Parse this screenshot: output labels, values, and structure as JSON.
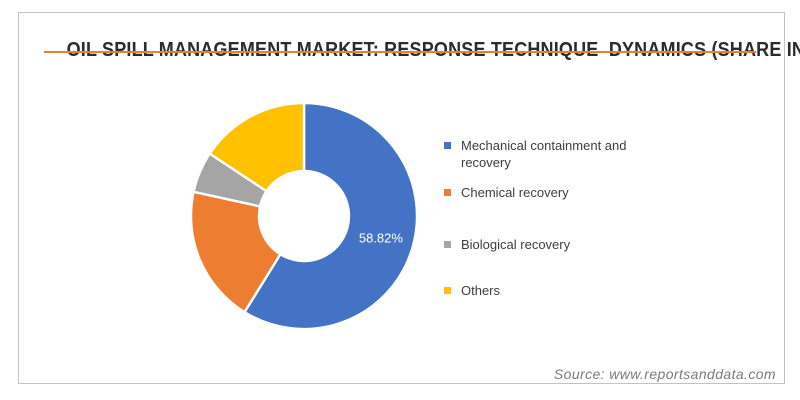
{
  "footer": {
    "source": "Source: www.reportsanddata.com"
  },
  "colors": {
    "accent_orange": "#e0823e",
    "frame_border": "#c3c3c3",
    "title_text": "#2b2b2b",
    "legend_text": "#3d3d3d",
    "source_text": "#7b7b7b",
    "slice_label_text": "#ffffff"
  },
  "chart_data": {
    "type": "pie",
    "subtype": "donut",
    "title": "OIL SPILL MANAGEMENT MARKET: RESPONSE TECHNIQUE  DYNAMICS (SHARE IN PERCENTAGE)",
    "legend_position": "right",
    "start_angle_deg": 0,
    "direction": "clockwise",
    "donut_hole_ratio": 0.4,
    "series": [
      {
        "name": "Mechanical containment and recovery",
        "value": 58.82,
        "color": "#4472C4",
        "data_label": "58.82%"
      },
      {
        "name": "Chemical recovery",
        "value": 19.61,
        "color": "#ED7D31",
        "data_label": ""
      },
      {
        "name": "Biological recovery",
        "value": 5.88,
        "color": "#A5A5A5",
        "data_label": ""
      },
      {
        "name": "Others",
        "value": 15.69,
        "color": "#FFC000",
        "data_label": ""
      }
    ]
  }
}
